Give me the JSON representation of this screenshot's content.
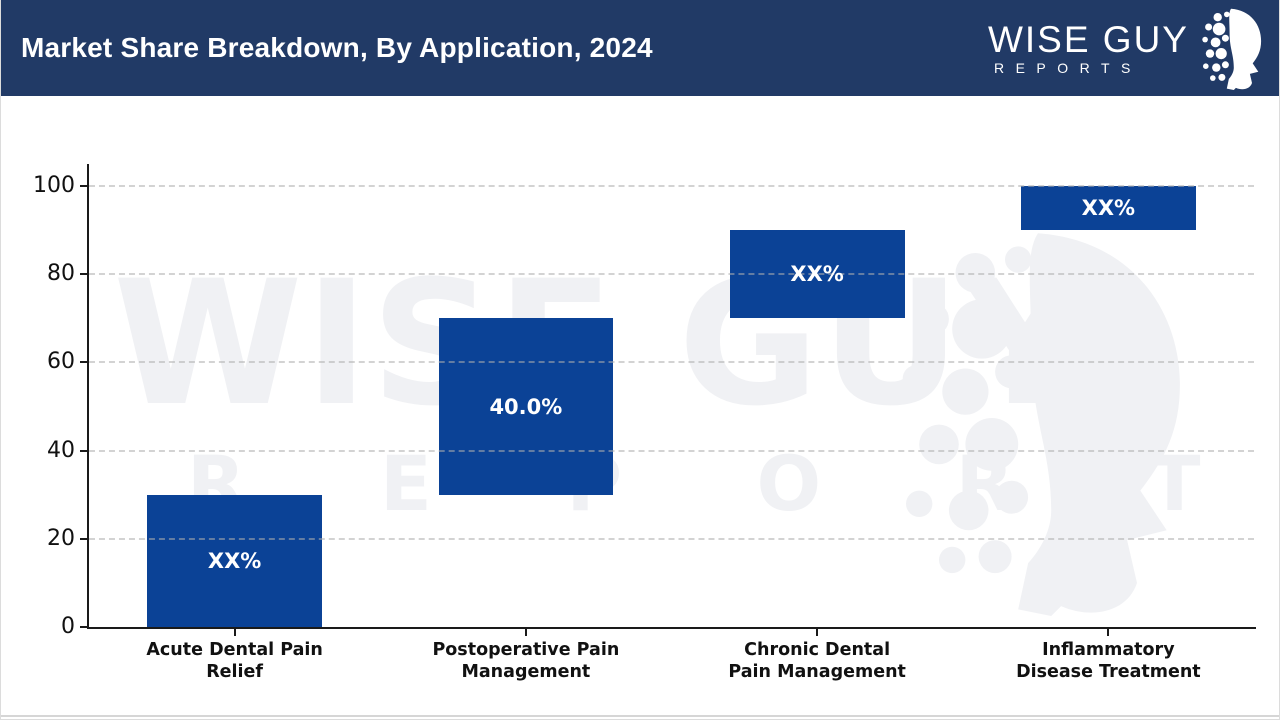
{
  "header": {
    "title": "Market Share Breakdown, By Application, 2024",
    "logo": {
      "brand": "WISE GUY",
      "sub": "REPORTS"
    }
  },
  "watermark": {
    "brand": "WISE GUY",
    "sub": "R E P O R T S"
  },
  "chart_data": {
    "type": "bar",
    "variant": "floating segment / waterfall-style market share bars",
    "title": "Market Share Breakdown, By Application, 2024",
    "categories": [
      [
        "Acute Dental Pain",
        "Relief"
      ],
      [
        "Postoperative Pain",
        "Management"
      ],
      [
        "Chronic Dental",
        "Pain Management"
      ],
      [
        "Inflammatory",
        "Disease Treatment"
      ]
    ],
    "segments": [
      {
        "category": "Acute Dental Pain Relief",
        "from": 0,
        "to": 30,
        "size": 30,
        "label": "XX%"
      },
      {
        "category": "Postoperative Pain Management",
        "from": 30,
        "to": 70,
        "size": 40,
        "label": "40.0%"
      },
      {
        "category": "Chronic Dental Pain Management",
        "from": 70,
        "to": 90,
        "size": 20,
        "label": "XX%"
      },
      {
        "category": "Inflammatory Disease Treatment",
        "from": 90,
        "to": 100,
        "size": 10,
        "label": "XX%"
      }
    ],
    "yticks": [
      0,
      20,
      40,
      60,
      80,
      100
    ],
    "ylim": [
      0,
      105
    ],
    "xlabel": "",
    "ylabel": "",
    "grid": "horizontal dashed",
    "legend": "none"
  },
  "colors": {
    "header_bg": "#213a66",
    "bar": "#0b4296",
    "bar_label": "#ffffff",
    "axis": "#1a1a1a",
    "grid": "#b0b0b0",
    "watermark": "#f0f1f4",
    "page_border": "#dcdcdc"
  }
}
